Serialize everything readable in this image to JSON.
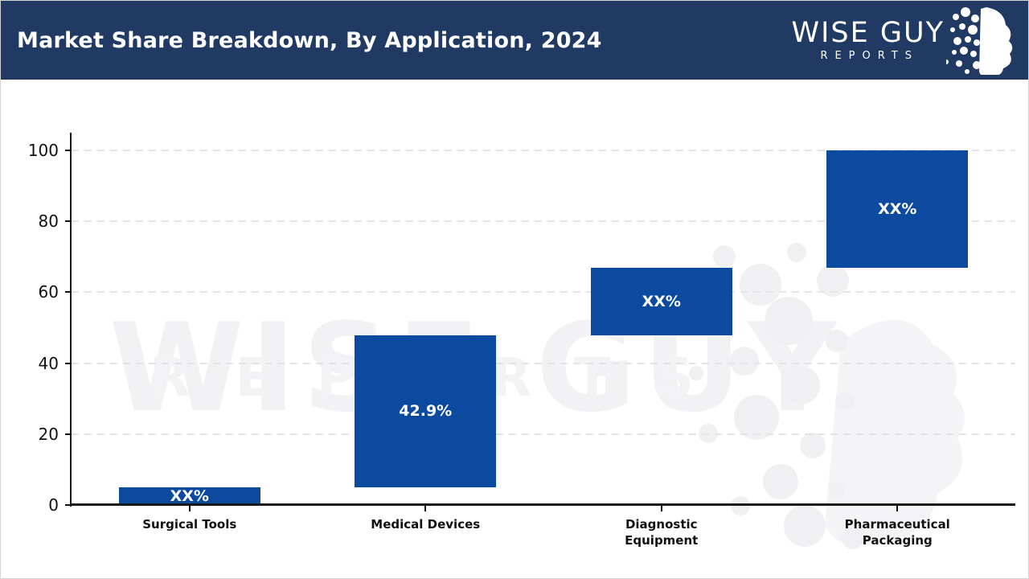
{
  "header": {
    "title": "Market Share Breakdown, By Application, 2024",
    "bg_color": "#203a64",
    "logo": {
      "line1": "WISE GUY",
      "line2": "REPORTS"
    }
  },
  "watermark": {
    "line1": "WISE GUY",
    "line2": "REPORTS"
  },
  "chart_data": {
    "type": "bar",
    "subtype": "waterfall",
    "title": "Market Share Breakdown, By Application, 2024",
    "xlabel": "",
    "ylabel": "",
    "categories": [
      "Surgical Tools",
      "Medical Devices",
      "Diagnostic Equipment",
      "Pharmaceutical Packaging"
    ],
    "tick_labels": [
      "Surgical Tools",
      "Medical Devices",
      "Diagnostic\nEquipment",
      "Pharmaceutical\nPackaging"
    ],
    "segments": [
      {
        "category": "Surgical Tools",
        "start": 0,
        "end": 5,
        "label": "XX%"
      },
      {
        "category": "Medical Devices",
        "start": 5,
        "end": 47.9,
        "label": "42.9%"
      },
      {
        "category": "Diagnostic Equipment",
        "start": 47.9,
        "end": 66.9,
        "label": "XX%"
      },
      {
        "category": "Pharmaceutical Packaging",
        "start": 66.9,
        "end": 100,
        "label": "XX%"
      }
    ],
    "yticks": [
      0,
      20,
      40,
      60,
      80,
      100
    ],
    "ylim": [
      0,
      105
    ],
    "grid": "horizontal-dashed",
    "legend": "none",
    "bar_color": "#0b4a9e",
    "bar_label_color": "#ffffff",
    "axis_color": "#1a1a1a"
  }
}
